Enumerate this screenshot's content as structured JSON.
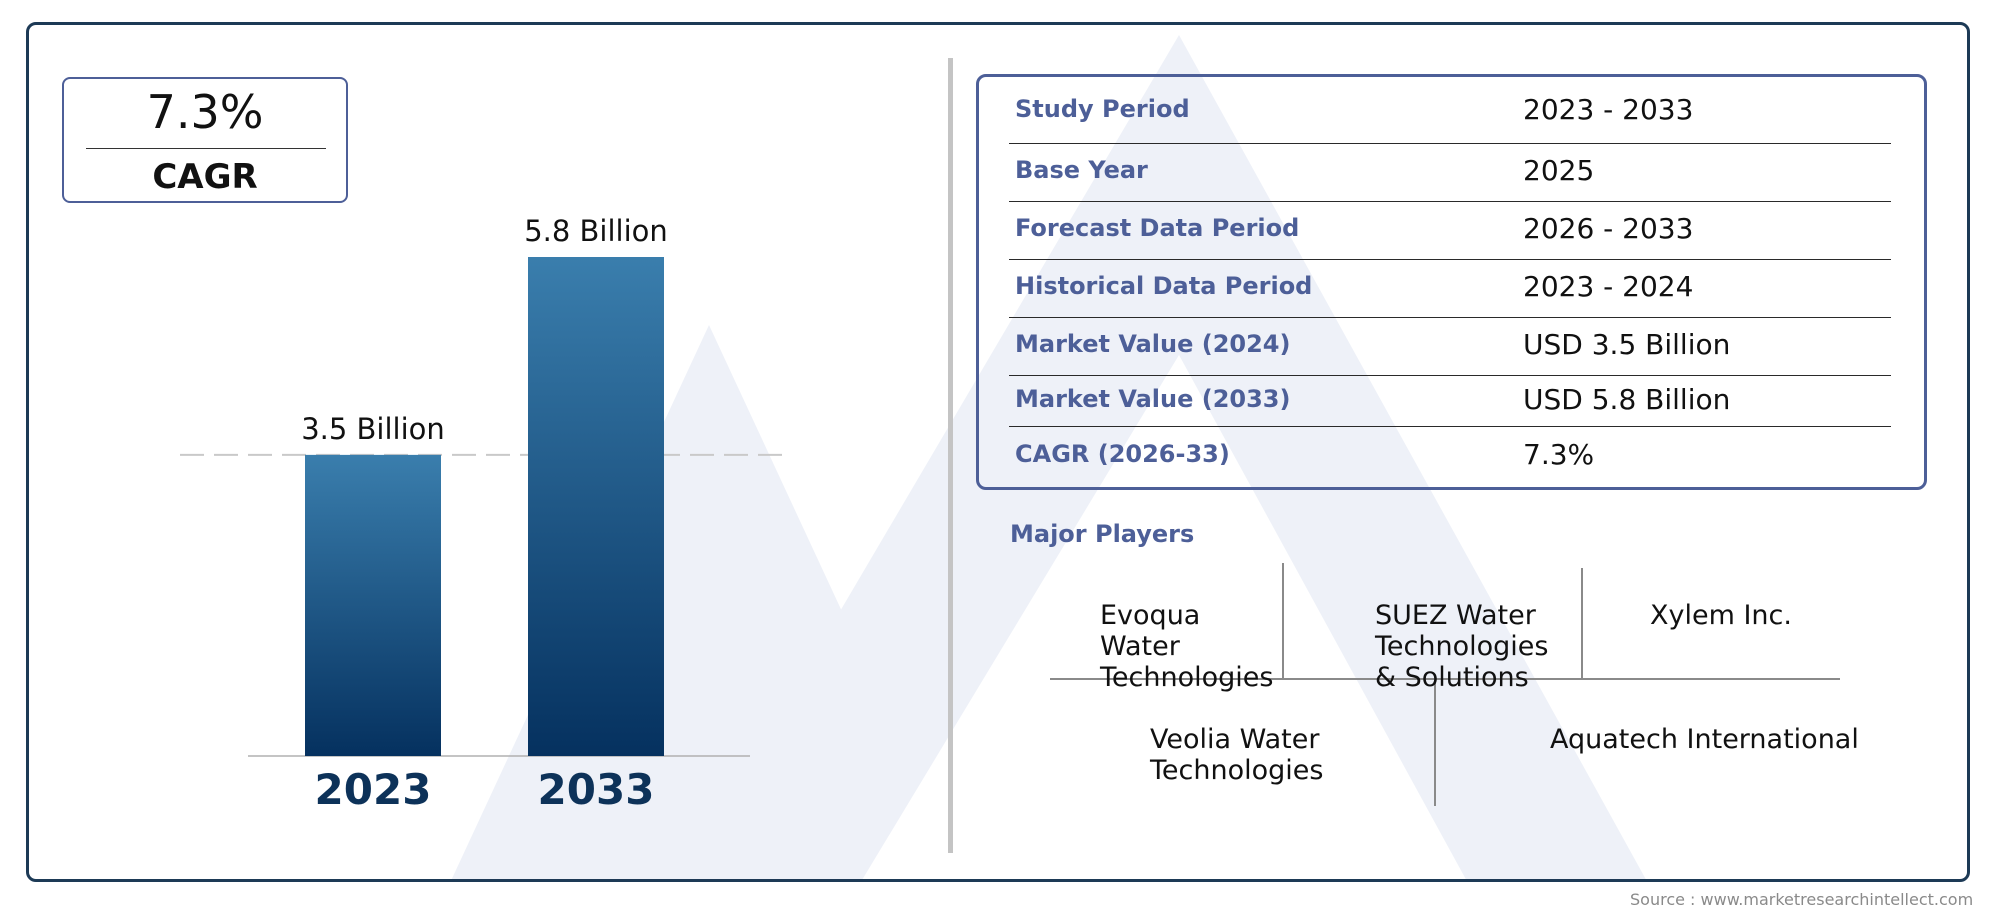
{
  "cagr_badge": {
    "value": "7.3%",
    "label": "CAGR"
  },
  "chart_data": {
    "type": "bar",
    "categories": [
      "2023",
      "2033"
    ],
    "values": [
      3.5,
      5.8
    ],
    "data_labels": [
      "3.5 Billion",
      "5.8 Billion"
    ],
    "unit": "Billion",
    "ylim": [
      0,
      5.8
    ],
    "grid": false,
    "legend": "none",
    "reference_line": 3.5,
    "bar_gradient": [
      "#3a7ead",
      "#05315f"
    ],
    "tick_color": "#0d3259"
  },
  "summary_table": {
    "rows": [
      {
        "label": "Study Period",
        "value": "2023 - 2033"
      },
      {
        "label": "Base Year",
        "value": "2025"
      },
      {
        "label": "Forecast Data Period",
        "value": "2026 - 2033"
      },
      {
        "label": "Historical Data Period",
        "value": "2023 - 2024"
      },
      {
        "label": "Market Value (2024)",
        "value": "USD 3.5 Billion"
      },
      {
        "label": "Market Value (2033)",
        "value": "USD 5.8 Billion"
      },
      {
        "label": "CAGR (2026-33)",
        "value": "7.3%"
      }
    ]
  },
  "major_players": {
    "title": "Major Players",
    "players": [
      "Evoqua Water Technologies",
      "SUEZ Water Technologies & Solutions",
      "Xylem Inc.",
      "Veolia Water Technologies",
      "Aquatech International"
    ]
  },
  "source": "Source : www.marketresearchintellect.com",
  "colors": {
    "accent": "#4d5f98",
    "frame": "#1d3a56",
    "bar_top": "#3a7ead",
    "bar_bottom": "#05315f"
  }
}
